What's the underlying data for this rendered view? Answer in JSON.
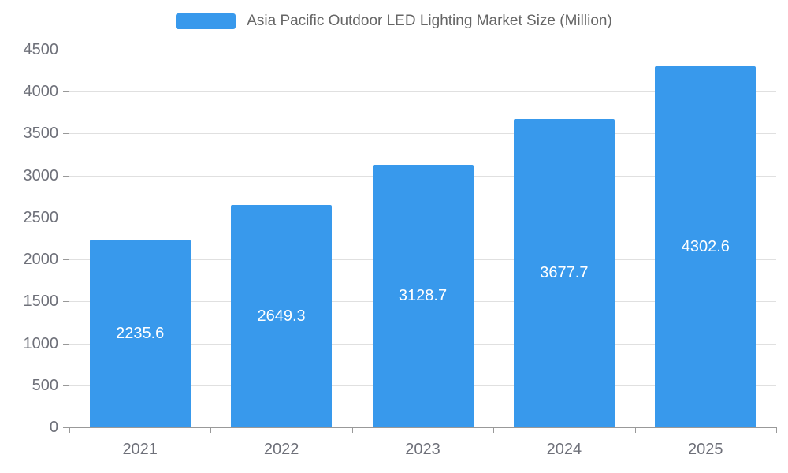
{
  "chart_data": {
    "type": "bar",
    "title": "Asia Pacific Outdoor LED Lighting Market Size (Million)",
    "series_name": "Asia Pacific Outdoor LED Lighting Market Size (Million)",
    "categories": [
      "2021",
      "2022",
      "2023",
      "2024",
      "2025"
    ],
    "values": [
      2235.6,
      2649.3,
      3128.7,
      3677.7,
      4302.6
    ],
    "ylim": [
      0,
      4500
    ],
    "y_ticks": [
      0,
      500,
      1000,
      1500,
      2000,
      2500,
      3000,
      3500,
      4000,
      4500
    ],
    "grid": true,
    "legend_position": "top",
    "xlabel": "",
    "ylabel": "",
    "colors": {
      "bar": "#3899EC",
      "bar_value_label": "#ffffff",
      "title_text": "#666666",
      "axis_text": "#6E7079",
      "grid_line": "#E0E0E0",
      "axis_line": "#999999"
    }
  }
}
